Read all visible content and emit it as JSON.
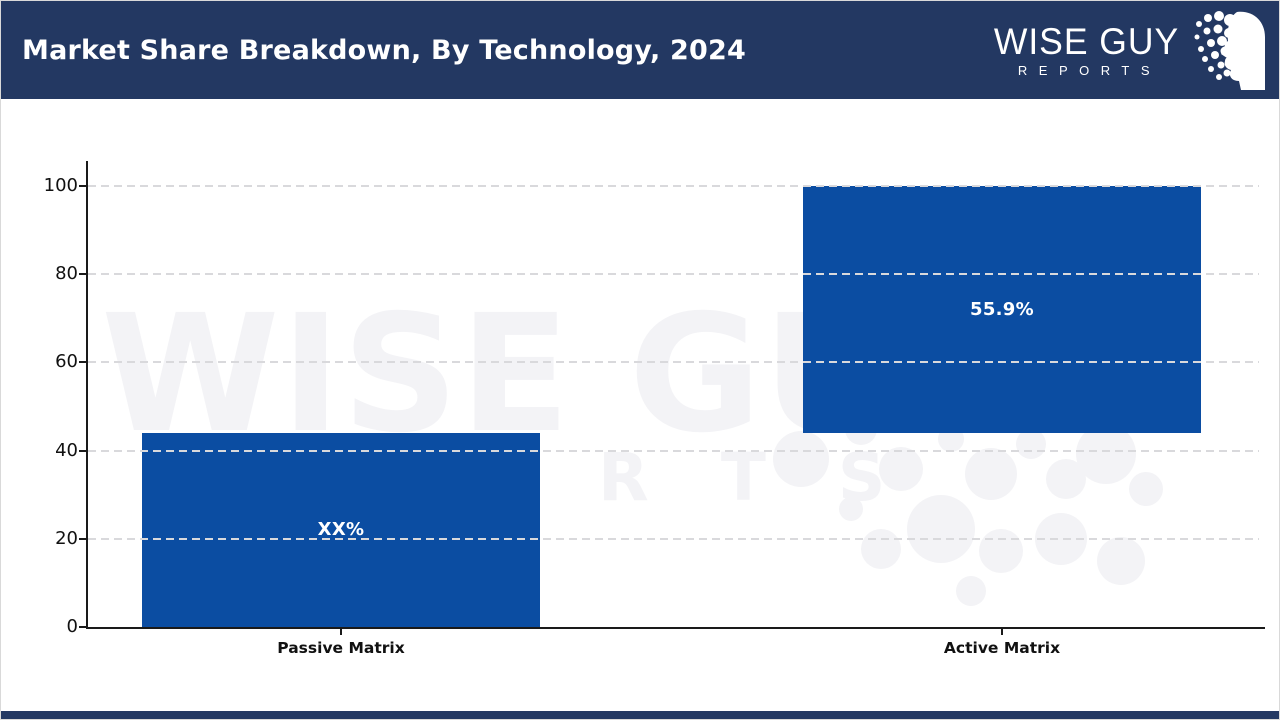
{
  "header": {
    "title": "Market Share Breakdown, By Technology, 2024",
    "bg_color": "#233862",
    "text_color": "#ffffff",
    "logo": {
      "line1": "WISE GUY",
      "line2": "REPORTS"
    }
  },
  "watermark": {
    "line1": "WISE GU",
    "line2_letters": {
      "l0": "R",
      "l1": "T",
      "l2": "S"
    }
  },
  "chart_data": {
    "type": "bar",
    "title": "Market Share Breakdown, By Technology, 2024",
    "categories": [
      "Passive Matrix",
      "Active Matrix"
    ],
    "bars": [
      {
        "category": "Passive Matrix",
        "start": 0,
        "end": 44.1,
        "label": "XX%"
      },
      {
        "category": "Active Matrix",
        "start": 44.1,
        "end": 100,
        "label": "55.9%"
      }
    ],
    "ylim": [
      0,
      100
    ],
    "yticks": [
      0,
      20,
      40,
      60,
      80,
      100
    ],
    "grid": "horizontal-dashed",
    "legend": "none",
    "bar_color": "#0b4da2",
    "bar_label_color": "#ffffff",
    "gridline_color": "#d9d9dc",
    "axis_color": "#1a1a1a"
  }
}
